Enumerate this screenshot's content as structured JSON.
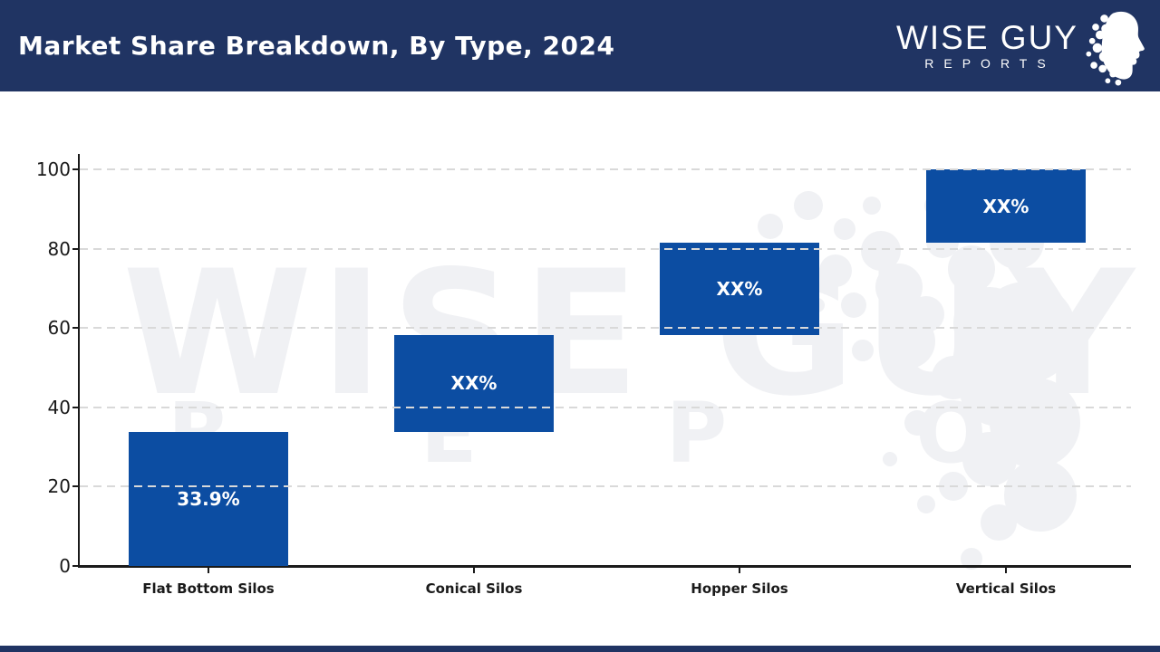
{
  "header": {
    "title": "Market Share Breakdown, By Type, 2024",
    "logo": {
      "line1": "WISE GUY",
      "line2": "REPORTS"
    }
  },
  "watermark": {
    "line1": "WISE GUY",
    "line2": "REPORTS"
  },
  "chart_data": {
    "type": "bar",
    "subtype": "waterfall",
    "title": "Market Share Breakdown, By Type, 2024",
    "xlabel": "",
    "ylabel": "",
    "categories": [
      "Flat Bottom Silos",
      "Conical Silos",
      "Hopper Silos",
      "Vertical Silos"
    ],
    "segments": [
      {
        "category": "Flat Bottom Silos",
        "start": 0,
        "end": 33.9,
        "label": "33.9%"
      },
      {
        "category": "Conical Silos",
        "start": 33.9,
        "end": 58.2,
        "label": "XX%"
      },
      {
        "category": "Hopper Silos",
        "start": 58.2,
        "end": 81.5,
        "label": "XX%"
      },
      {
        "category": "Vertical Silos",
        "start": 81.5,
        "end": 100,
        "label": "XX%"
      }
    ],
    "yticks": [
      0,
      20,
      40,
      60,
      80,
      100
    ],
    "ylim": [
      0,
      104
    ],
    "grid": "horizontal-dashed",
    "legend": "none",
    "bar_color": "#0c4da2"
  },
  "colors": {
    "header_bg": "#203463",
    "footer_bg": "#203463",
    "bar": "#0c4da2",
    "bar_label": "#ffffff",
    "axis": "#1a1a1a",
    "gridline": "#d9d9d9",
    "watermark": "#f0f1f4",
    "title_text": "#ffffff"
  }
}
